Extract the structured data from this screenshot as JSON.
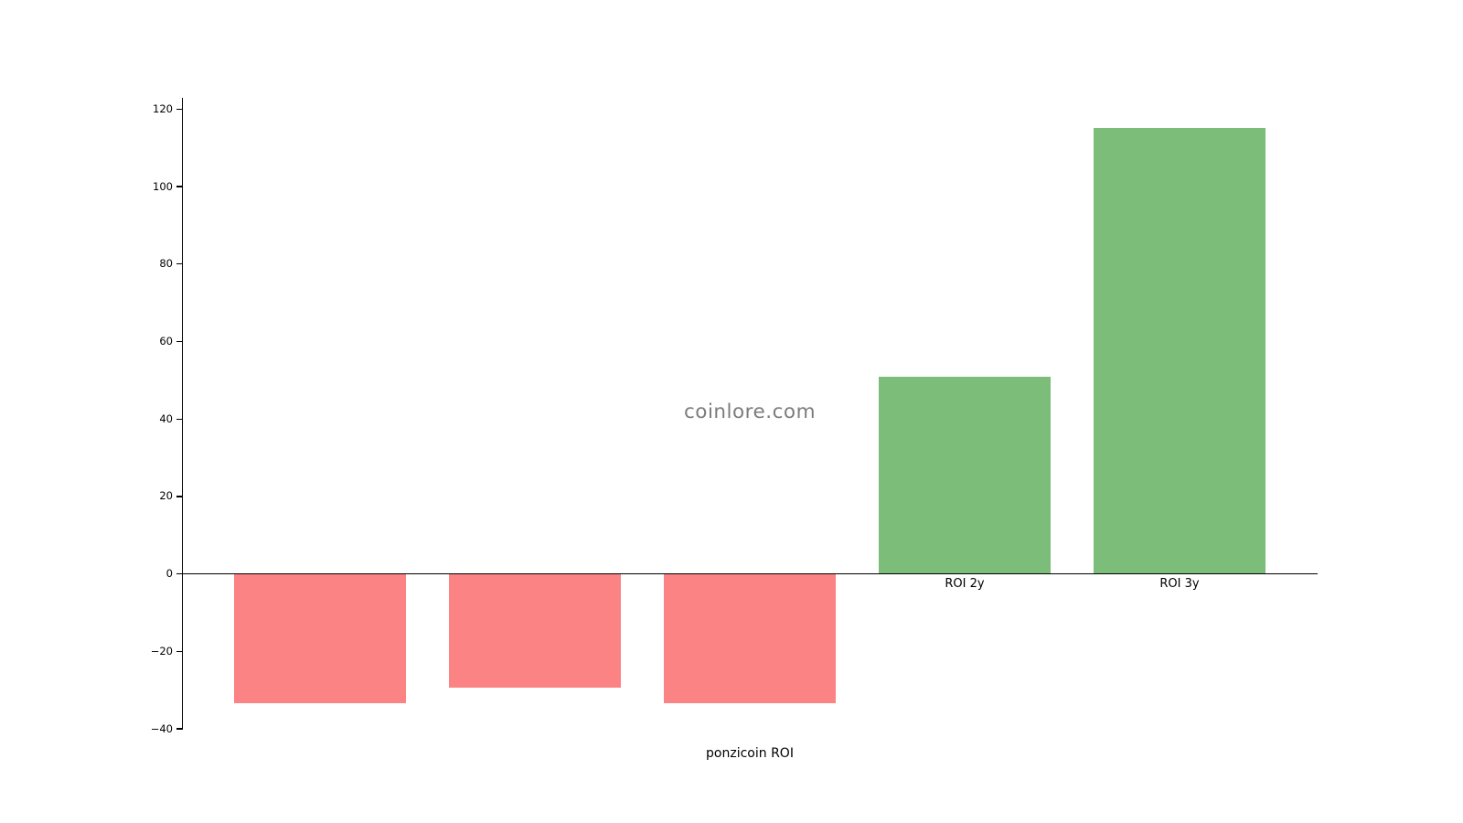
{
  "watermark_text": "coinlore.com",
  "chart_data": {
    "type": "bar",
    "xlabel": "ponzicoin ROI",
    "ylabel": "",
    "title": "",
    "grid": false,
    "legend": "none",
    "ylim": [
      -40.7,
      122.9
    ],
    "y_ticks": [
      {
        "v": -40,
        "label": "−40"
      },
      {
        "v": -20,
        "label": "−20"
      },
      {
        "v": 0,
        "label": "0"
      },
      {
        "v": 20,
        "label": "20"
      },
      {
        "v": 40,
        "label": "40"
      },
      {
        "v": 60,
        "label": "60"
      },
      {
        "v": 80,
        "label": "80"
      },
      {
        "v": 100,
        "label": "100"
      },
      {
        "v": 120,
        "label": "120"
      }
    ],
    "bars": [
      {
        "label": "",
        "value": -33.3
      },
      {
        "label": "",
        "value": -29.3
      },
      {
        "label": "",
        "value": -33.3
      },
      {
        "label": "ROI 2y",
        "value": 51
      },
      {
        "label": "ROI 3y",
        "value": 115
      }
    ],
    "colors": {
      "positive": "#7cbd79",
      "negative": "#fb8383",
      "axis": "#000000",
      "watermark": "#7c7c7c"
    }
  }
}
